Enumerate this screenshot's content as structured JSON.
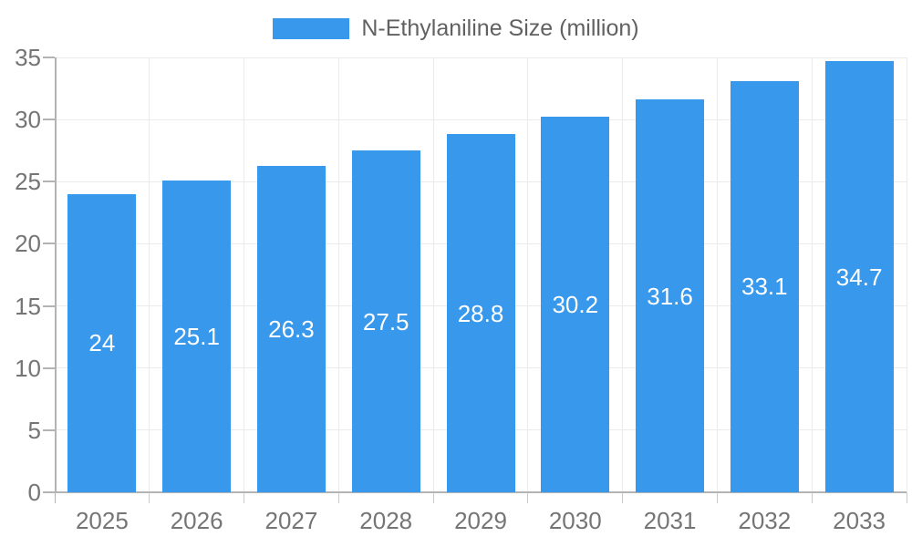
{
  "chart_data": {
    "type": "bar",
    "title": "N-Ethylaniline Size (million)",
    "categories": [
      "2025",
      "2026",
      "2027",
      "2028",
      "2029",
      "2030",
      "2031",
      "2032",
      "2033"
    ],
    "values": [
      24,
      25.1,
      26.3,
      27.5,
      28.8,
      30.2,
      31.6,
      33.1,
      34.7
    ],
    "value_labels": [
      "24",
      "25.1",
      "26.3",
      "27.5",
      "28.8",
      "30.2",
      "31.6",
      "33.1",
      "34.7"
    ],
    "xlabel": "",
    "ylabel": "",
    "ylim": [
      0,
      35
    ],
    "yticks": [
      0,
      5,
      10,
      15,
      20,
      25,
      30,
      35
    ],
    "grid": true,
    "legend_position": "top-center",
    "colors": {
      "bar": "#3898ec",
      "axis_line": "#b3b3b3",
      "gridline": "#ebebeb",
      "x_tick": "#cccccc",
      "axis_text": "#757575",
      "legend_text": "#616161",
      "bar_label_text": "#ffffff",
      "background": "#ffffff"
    }
  }
}
